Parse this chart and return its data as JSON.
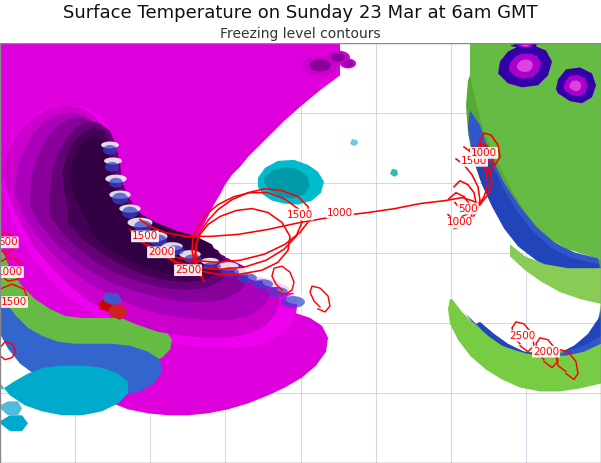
{
  "title": "Surface Temperature on Sunday 23 Mar at 6am GMT",
  "subtitle": "Freezing level contours",
  "title_fontsize": 13,
  "subtitle_fontsize": 10,
  "fig_width": 6.01,
  "fig_height": 4.63,
  "dpi": 100,
  "bg_ocean": "#d0daf0",
  "bg_title": "#ffffff",
  "contour_color": "#ff0000",
  "grid_color": "#b8c8e0",
  "border_color": "#888888"
}
